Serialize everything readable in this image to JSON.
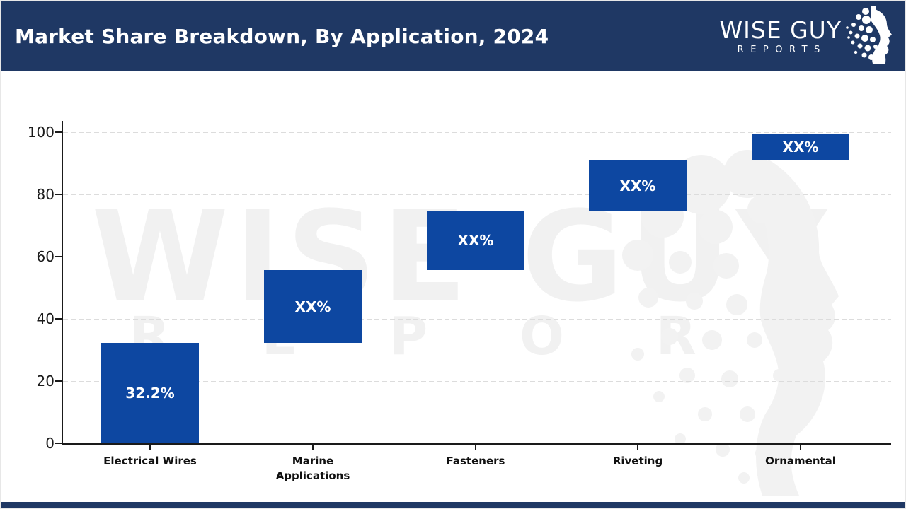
{
  "header": {
    "title": "Market Share Breakdown, By Application, 2024",
    "bg_color": "#1f3864",
    "logo": {
      "wordmark": "WISE GUY",
      "subtext": "REPORTS"
    }
  },
  "watermark": {
    "wordmark": "WISE GUY",
    "subtext": "R E P O R T S"
  },
  "footer": {
    "bg_color": "#1f3864"
  },
  "chart_data": {
    "type": "bar",
    "subtype": "floating-waterfall",
    "title": "Market Share Breakdown, By Application, 2024",
    "categories": [
      "Electrical Wires",
      "Marine Applications",
      "Fasteners",
      "Riveting",
      "Ornamental"
    ],
    "tick_labels": [
      "Electrical Wires",
      "Marine\nApplications",
      "Fasteners",
      "Riveting",
      "Ornamental"
    ],
    "bars": [
      {
        "category": "Electrical Wires",
        "start": 0,
        "end": 32.2,
        "label": "32.2%"
      },
      {
        "category": "Marine Applications",
        "start": 32.2,
        "end": 55.7,
        "label": "XX%"
      },
      {
        "category": "Fasteners",
        "start": 55.7,
        "end": 74.7,
        "label": "XX%"
      },
      {
        "category": "Riveting",
        "start": 74.7,
        "end": 90.8,
        "label": "XX%"
      },
      {
        "category": "Ornamental",
        "start": 90.8,
        "end": 99.6,
        "label": "XX%"
      }
    ],
    "ylim": [
      0,
      100
    ],
    "yticks": [
      0,
      20,
      40,
      60,
      80,
      100
    ],
    "xlabel": "",
    "ylabel": "",
    "grid": "horizontal-dashed",
    "legend": "none",
    "bar_color": "#0d47a1",
    "bar_label_color": "#ffffff",
    "axis_color": "#1a1a1a",
    "grid_color": "#dcdcdc"
  }
}
